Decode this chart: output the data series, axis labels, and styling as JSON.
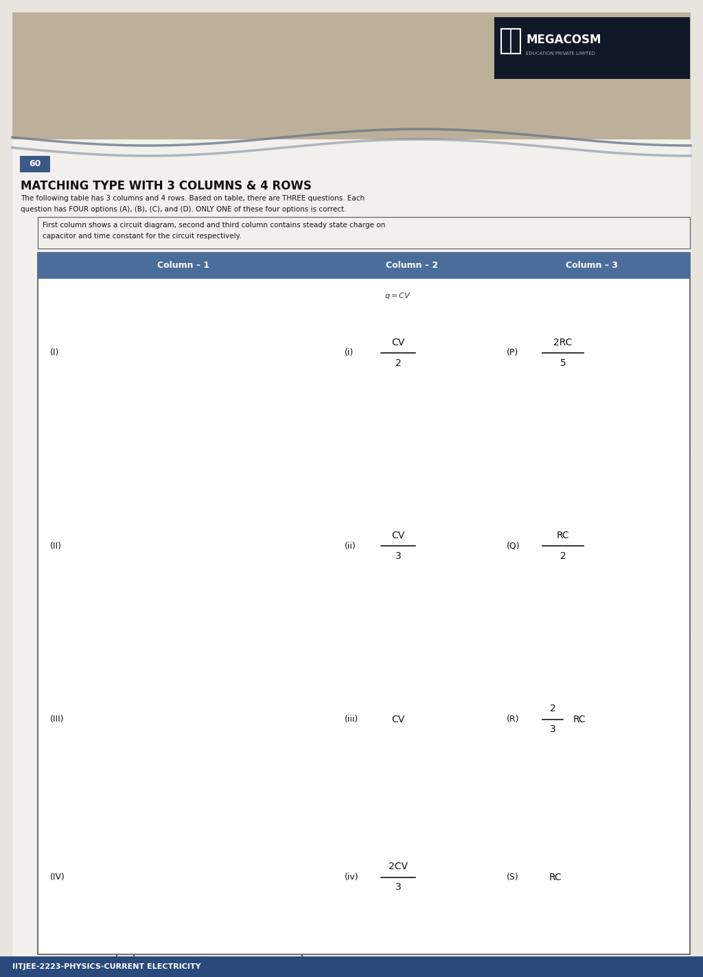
{
  "page_number": "60",
  "title": "MATCHING TYPE WITH 3 COLUMNS & 4 ROWS",
  "desc1": "The following table has 3 columns and 4 rows. Based on table, there are THREE questions. Each",
  "desc2": "question has FOUR options (A), (B), (C), and (D). ONLY ONE of these four options is correct.",
  "desc3": "First column shows a circuit diagram, second and third column contains steady state charge on",
  "desc4": "capacitor and time constant for the circuit respectively.",
  "col1_header": "Column – 1",
  "col2_header": "Column – 2",
  "col3_header": "Column – 3",
  "row_labels": [
    "(I)",
    "(II)",
    "(III)",
    "(IV)"
  ],
  "col2_labels": [
    "(i)",
    "(ii)",
    "(iii)",
    "(iv)"
  ],
  "col3_labels": [
    "(P)",
    "(Q)",
    "(R)",
    "(S)"
  ],
  "col2_values": [
    "CV/2",
    "CV/3",
    "CV",
    "2CV/3"
  ],
  "col3_values": [
    "2RC/5",
    "RC/2",
    "2/3 RC",
    "RC"
  ],
  "megacosm_text": "MEGACOSM",
  "megacosm_sub": "EDUCATION PRIVATE LIMITED",
  "footer_text": "IITJEE-2223-PHYSICS-CURRENT ELECTRICITY",
  "bg_color": "#e8e4de",
  "paper_color": "#f2f0ec",
  "white": "#ffffff",
  "header_bg": "#4a6d9c",
  "border_color": "#555555",
  "cc": "#3a5a8c",
  "text_color": "#1a1a1a",
  "footer_bg": "#2a4a7c"
}
